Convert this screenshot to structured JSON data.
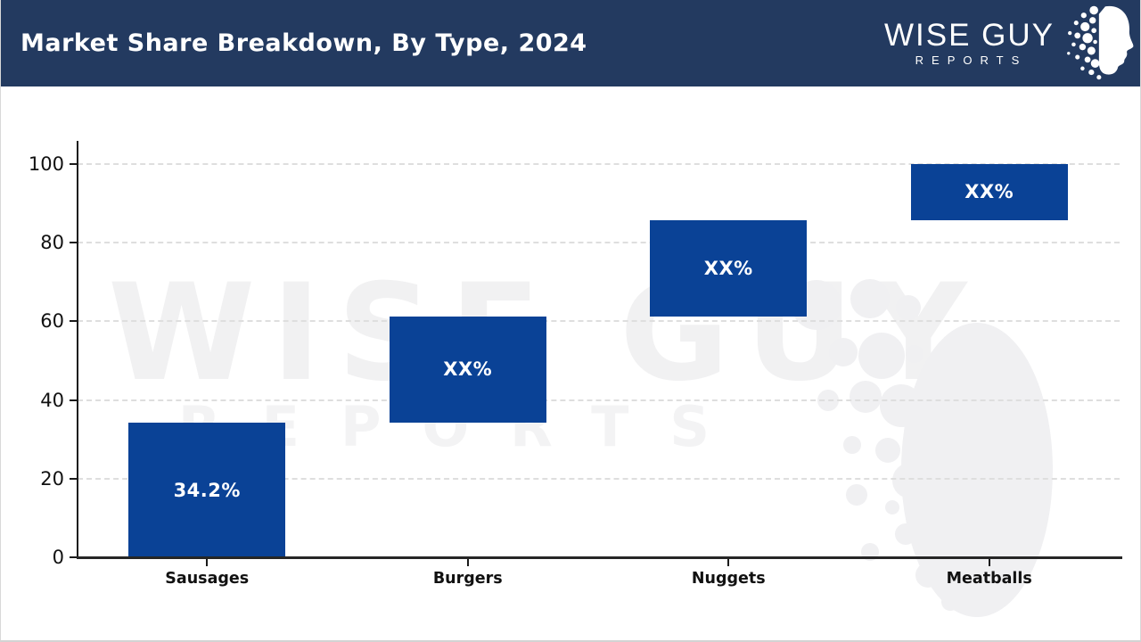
{
  "header": {
    "title": "Market Share Breakdown, By Type, 2024",
    "logo": {
      "line1": "WISE GUY",
      "line2": "REPORTS"
    },
    "background_color": "#233a60"
  },
  "watermark": {
    "line1": "WISE GUY",
    "line2": "REPORTS",
    "color": "#f1f1f2"
  },
  "chart_data": {
    "type": "bar",
    "subtype": "floating-waterfall",
    "title": "Market Share Breakdown, By Type, 2024",
    "categories": [
      "Sausages",
      "Burgers",
      "Nuggets",
      "Meatballs"
    ],
    "segments": [
      {
        "category": "Sausages",
        "start": 0,
        "end": 34.2,
        "label": "34.2%"
      },
      {
        "category": "Burgers",
        "start": 34.2,
        "end": 61.3,
        "label": "XX%"
      },
      {
        "category": "Nuggets",
        "start": 61.3,
        "end": 85.8,
        "label": "XX%"
      },
      {
        "category": "Meatballs",
        "start": 85.8,
        "end": 100,
        "label": "XX%"
      }
    ],
    "ylim": [
      0,
      100
    ],
    "yticks": [
      0,
      20,
      40,
      60,
      80,
      100
    ],
    "bar_color": "#0a4296",
    "bar_label_color": "#ffffff",
    "grid": {
      "axis": "y",
      "style": "dashed",
      "color": "#dedede"
    },
    "legend": "none",
    "xlabel": "",
    "ylabel": ""
  }
}
